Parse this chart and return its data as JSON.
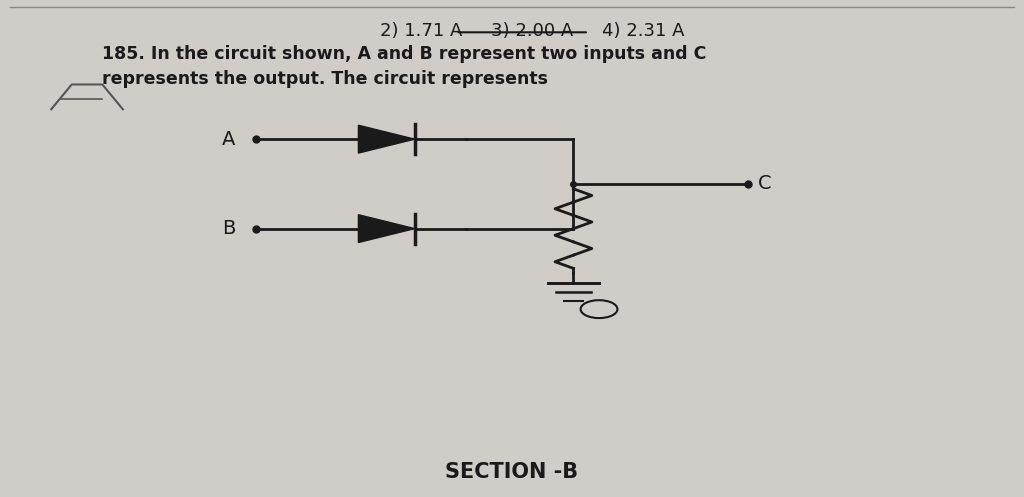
{
  "bg_color": "#d0ccc8",
  "text_color": "#1a1a1a",
  "line_color": "#1a1a1a",
  "title_line1": "2) 1.71 A     3) 2.00 A     4) 2.31 A",
  "title_line2": "185. In the circuit shown, A and B represent two inputs and C",
  "title_line3": "represents the output. The circuit represents",
  "section_label": "SECTION -B",
  "label_A": "A",
  "label_B": "B",
  "label_C": "C",
  "figsize": [
    10.24,
    4.97
  ],
  "dpi": 100
}
